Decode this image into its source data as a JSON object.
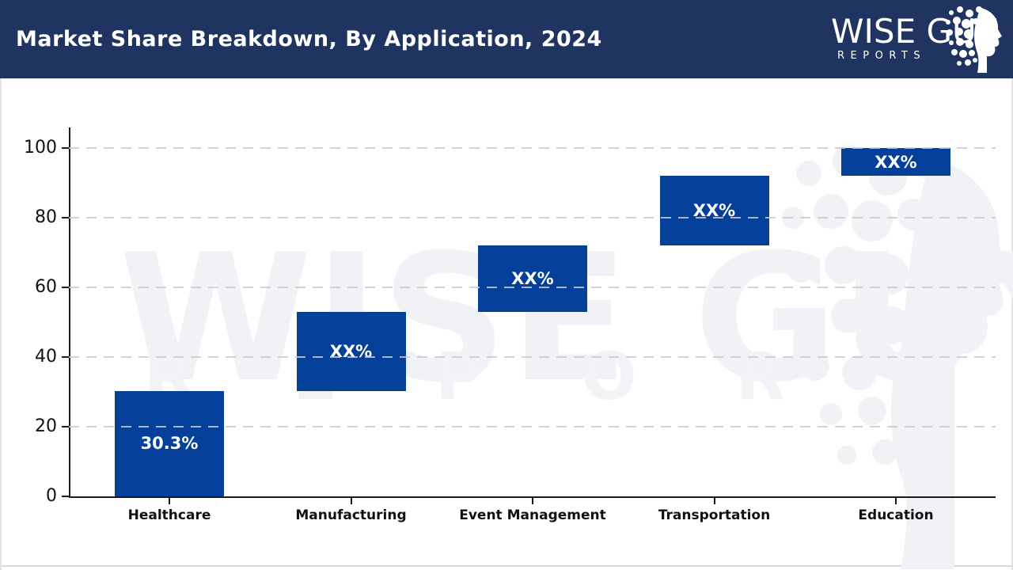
{
  "header": {
    "title": "Market Share Breakdown, By Application, 2024",
    "bg_color": "#1f3460"
  },
  "logo": {
    "line1": "WISE GUY",
    "line2": "R E P O R T S"
  },
  "watermark": {
    "line1": "WISE GUY",
    "line2": "R E P O R T S"
  },
  "chart_data": {
    "type": "bar",
    "subtype": "waterfall",
    "title": "Market Share Breakdown, By Application, 2024",
    "categories": [
      "Healthcare",
      "Manufacturing",
      "Event Management",
      "Transportation",
      "Education"
    ],
    "segments": [
      {
        "category": "Healthcare",
        "start": 0,
        "end": 30.3,
        "label": "30.3%"
      },
      {
        "category": "Manufacturing",
        "start": 30.3,
        "end": 53,
        "label": "XX%"
      },
      {
        "category": "Event Management",
        "start": 53,
        "end": 72,
        "label": "XX%"
      },
      {
        "category": "Transportation",
        "start": 72,
        "end": 92,
        "label": "XX%"
      },
      {
        "category": "Education",
        "start": 92,
        "end": 100,
        "label": "XX%"
      }
    ],
    "increments": [
      30.3,
      22.7,
      19,
      20,
      8
    ],
    "xlabel": "",
    "ylabel": "",
    "ylim": [
      0,
      100
    ],
    "yticks": [
      0,
      20,
      40,
      60,
      80,
      100
    ],
    "grid": true,
    "grid_style": "dashed",
    "legend": "none",
    "bar_color": "#04409a",
    "bar_label_color": "#ffffff",
    "axis_color": "#1a1a1a"
  }
}
